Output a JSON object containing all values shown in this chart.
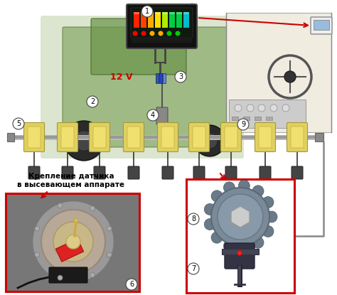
{
  "bg_color": "#ffffff",
  "label_1": "1",
  "label_2": "2",
  "label_3": "3",
  "label_4": "4",
  "label_5": "5",
  "label_6": "6",
  "label_7": "7",
  "label_8": "8",
  "label_9": "9",
  "voltage_label": "12 V",
  "voltage_color": "#cc0000",
  "annotation_text_line1": "Крепление датчика",
  "annotation_text_line2": "в высевающем аппарате",
  "annotation_color": "#000000",
  "number_fontsize": 7,
  "annotation_fontsize": 7.5,
  "red_box_color": "#cc0000"
}
